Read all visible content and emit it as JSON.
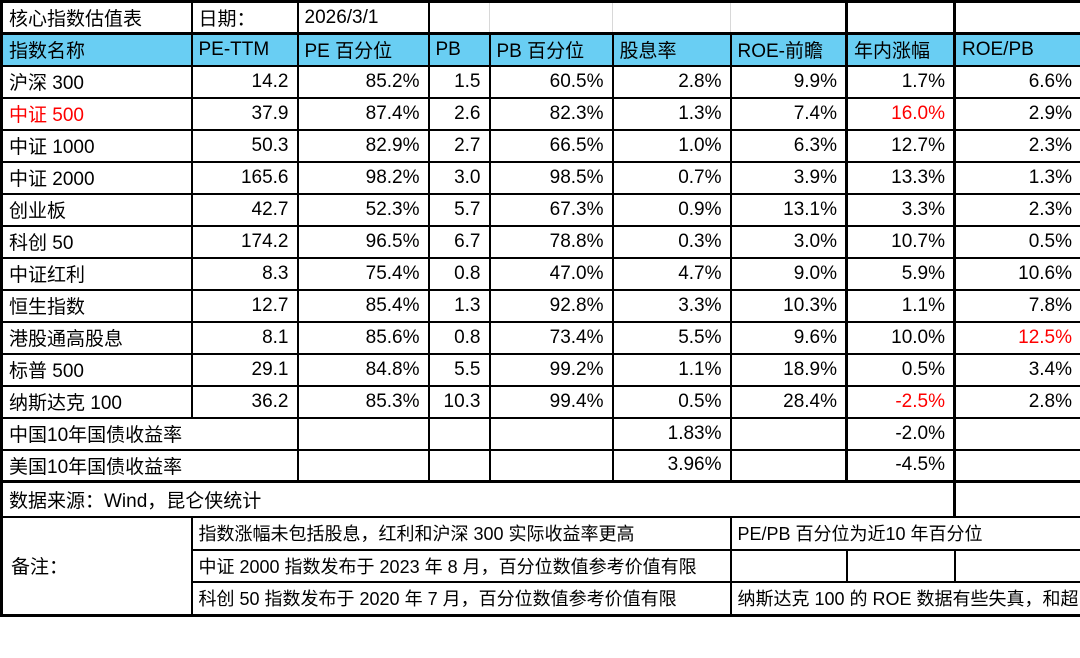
{
  "colors": {
    "header_bg": "#69cef3",
    "highlight_red": "#fe0000",
    "border": "#000000",
    "light_grid": "#d8d8d8"
  },
  "top_bar": {
    "title": "核心指数估值表",
    "date_label": "日期：",
    "date_value": "2026/3/1"
  },
  "header": {
    "columns": [
      "指数名称",
      "PE-TTM",
      "PE 百分位",
      "PB",
      "PB 百分位",
      "股息率",
      "ROE-前瞻",
      "年内涨幅",
      "ROE/PB"
    ]
  },
  "rows": [
    {
      "name": "沪深 300",
      "cells": [
        "14.2",
        "85.2%",
        "1.5",
        "60.5%",
        "2.8%",
        "9.9%",
        "1.7%",
        "6.6%"
      ],
      "red_name": false,
      "red_cells": []
    },
    {
      "name": "中证 500",
      "cells": [
        "37.9",
        "87.4%",
        "2.6",
        "82.3%",
        "1.3%",
        "7.4%",
        "16.0%",
        "2.9%"
      ],
      "red_name": true,
      "red_cells": [
        6
      ]
    },
    {
      "name": "中证 1000",
      "cells": [
        "50.3",
        "82.9%",
        "2.7",
        "66.5%",
        "1.0%",
        "6.3%",
        "12.7%",
        "2.3%"
      ],
      "red_name": false,
      "red_cells": []
    },
    {
      "name": "中证 2000",
      "cells": [
        "165.6",
        "98.2%",
        "3.0",
        "98.5%",
        "0.7%",
        "3.9%",
        "13.3%",
        "1.3%"
      ],
      "red_name": false,
      "red_cells": []
    },
    {
      "name": "创业板",
      "cells": [
        "42.7",
        "52.3%",
        "5.7",
        "67.3%",
        "0.9%",
        "13.1%",
        "3.3%",
        "2.3%"
      ],
      "red_name": false,
      "red_cells": []
    },
    {
      "name": "科创 50",
      "cells": [
        "174.2",
        "96.5%",
        "6.7",
        "78.8%",
        "0.3%",
        "3.0%",
        "10.7%",
        "0.5%"
      ],
      "red_name": false,
      "red_cells": []
    },
    {
      "name": "中证红利",
      "cells": [
        "8.3",
        "75.4%",
        "0.8",
        "47.0%",
        "4.7%",
        "9.0%",
        "5.9%",
        "10.6%"
      ],
      "red_name": false,
      "red_cells": []
    },
    {
      "name": "恒生指数",
      "cells": [
        "12.7",
        "85.4%",
        "1.3",
        "92.8%",
        "3.3%",
        "10.3%",
        "1.1%",
        "7.8%"
      ],
      "red_name": false,
      "red_cells": []
    },
    {
      "name": "港股通高股息",
      "cells": [
        "8.1",
        "85.6%",
        "0.8",
        "73.4%",
        "5.5%",
        "9.6%",
        "10.0%",
        "12.5%"
      ],
      "red_name": false,
      "red_cells": [
        7
      ]
    },
    {
      "name": "标普 500",
      "cells": [
        "29.1",
        "84.8%",
        "5.5",
        "99.2%",
        "1.1%",
        "18.9%",
        "0.5%",
        "3.4%"
      ],
      "red_name": false,
      "red_cells": []
    },
    {
      "name": "纳斯达克 100",
      "cells": [
        "36.2",
        "85.3%",
        "10.3",
        "99.4%",
        "0.5%",
        "28.4%",
        "-2.5%",
        "2.8%"
      ],
      "red_name": false,
      "red_cells": [
        6
      ]
    }
  ],
  "bond_rows": [
    {
      "name": "中国10年国债收益率",
      "dividend_yield": "1.83%",
      "ytd_change": "-2.0%"
    },
    {
      "name": "美国10年国债收益率",
      "dividend_yield": "3.96%",
      "ytd_change": "-4.5%"
    }
  ],
  "source_row": {
    "text": "数据来源：Wind，昆仑侠统计"
  },
  "notes": {
    "label": "备注：",
    "row1_left": "指数涨幅未包括股息，红利和沪深 300 实际收益率更高",
    "row1_right": "PE/PB 百分位为近10 年百分位",
    "row2_left": "中证 2000 指数发布于 2023 年 8 月，百分位数值参考价值有限",
    "row3_left": "科创 50 指数发布于 2020 年 7 月，百分位数值参考价值有限",
    "row3_right": "纳斯达克 100 的 ROE 数据有些失真，和超"
  }
}
